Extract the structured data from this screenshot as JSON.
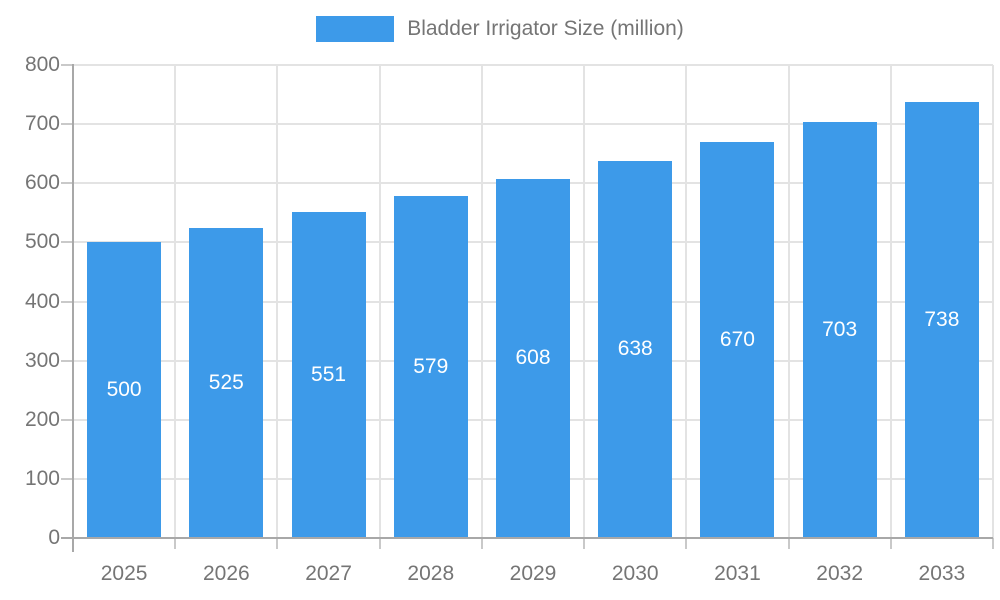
{
  "legend": {
    "label": "Bladder Irrigator Size (million)"
  },
  "chart_data": {
    "type": "bar",
    "title": "Bladder Irrigator Size (million)",
    "categories": [
      "2025",
      "2026",
      "2027",
      "2028",
      "2029",
      "2030",
      "2031",
      "2032",
      "2033"
    ],
    "values": [
      500,
      525,
      551,
      579,
      608,
      638,
      670,
      703,
      738
    ],
    "xlabel": "",
    "ylabel": "",
    "ylim": [
      0,
      800
    ],
    "ytick_step": 100,
    "grid": true,
    "legend_position": "top-center",
    "colors": {
      "bar": "#3D9AE9",
      "value_label": "#FFFFFF",
      "axis_text": "#757575",
      "gridline": "#E3E3E3",
      "axis_line": "#A8A8A8",
      "tick": "#C9C9C9",
      "background": "#FFFFFF"
    }
  }
}
